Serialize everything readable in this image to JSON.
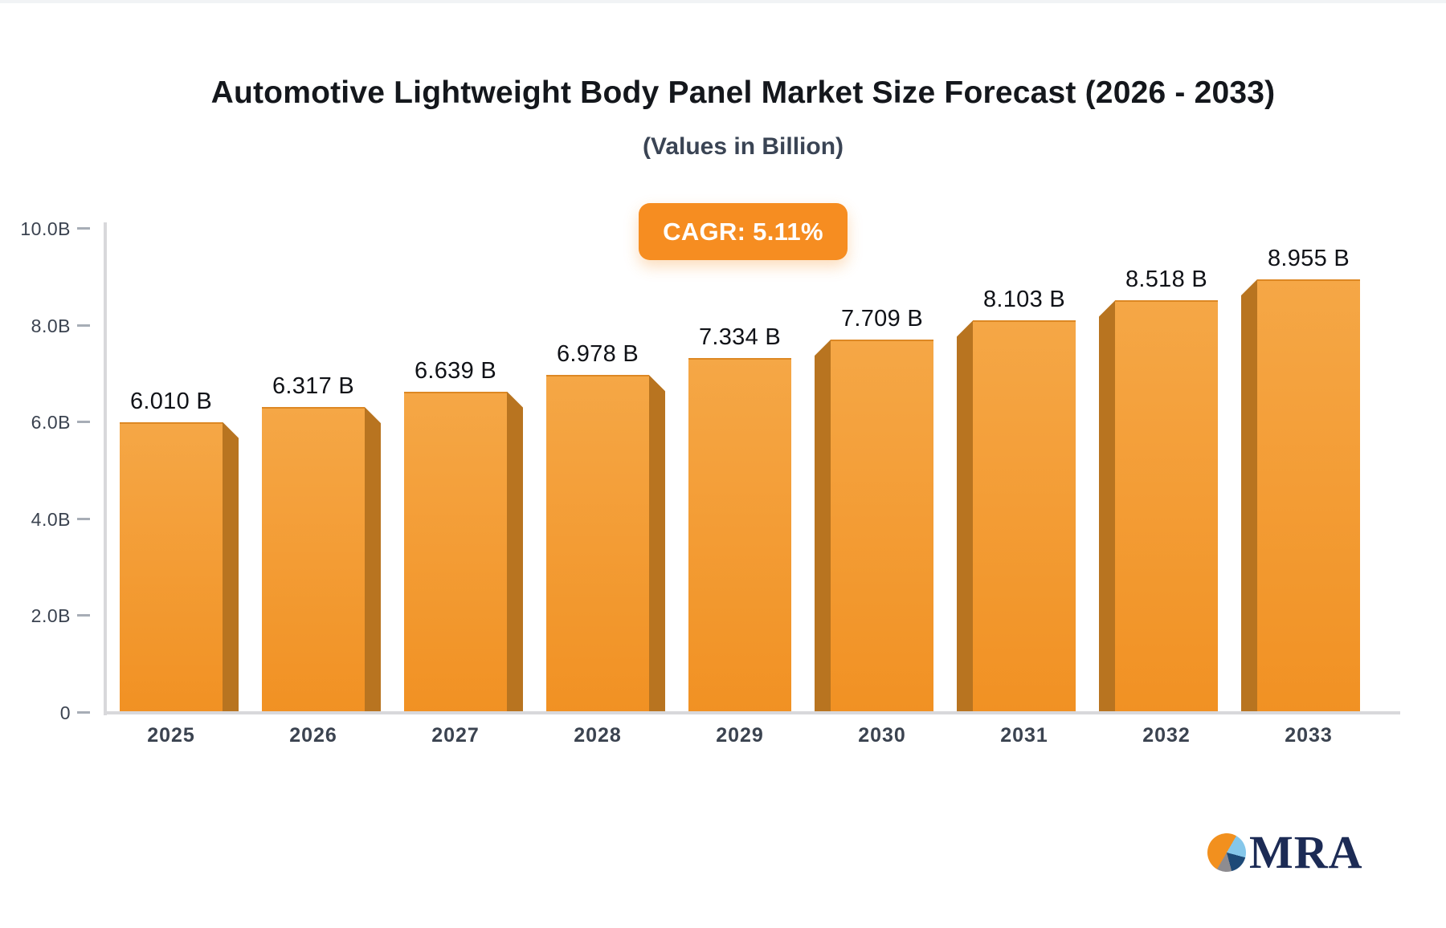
{
  "header": {
    "title": "Automotive Lightweight Body Panel Market Size Forecast (2026 - 2033)",
    "subtitle": "(Values in Billion)"
  },
  "badge": {
    "label": "CAGR: 5.11%",
    "color": "#f68d21"
  },
  "chart_data": {
    "type": "bar",
    "title": "Automotive Lightweight Body Panel Market Size Forecast (2026 - 2033)",
    "subtitle": "(Values in Billion)",
    "annotation": "CAGR: 5.11%",
    "categories": [
      "2025",
      "2026",
      "2027",
      "2028",
      "2029",
      "2030",
      "2031",
      "2032",
      "2033"
    ],
    "values": [
      6.01,
      6.317,
      6.639,
      6.978,
      7.334,
      7.709,
      8.103,
      8.518,
      8.955
    ],
    "bar_labels": [
      "6.010 B",
      "6.317 B",
      "6.639 B",
      "6.978 B",
      "7.334 B",
      "7.709 B",
      "8.103 B",
      "8.518 B",
      "8.955 B"
    ],
    "xlabel": "",
    "ylabel": "",
    "ylim": [
      0,
      10
    ],
    "yticks": [
      "0",
      "2.0B",
      "4.0B",
      "6.0B",
      "8.0B",
      "10.0B"
    ],
    "ytick_values": [
      0,
      2,
      4,
      6,
      8,
      10
    ],
    "grid": false,
    "legend": "none",
    "colors": {
      "bar_face_top": "#f5a746",
      "bar_face_bottom": "#f19123",
      "bar_side": "#b87420",
      "axis_line": "#d8d8db",
      "tick_text": "#3b4350",
      "value_text": "#101217"
    }
  },
  "logo": {
    "text": "MRA",
    "colors": {
      "navy": "#1c2b55",
      "pie_orange": "#f2901e",
      "pie_light_blue": "#85c7ea",
      "pie_dark_blue": "#1d4a77",
      "pie_gray": "#8e8c90"
    }
  }
}
